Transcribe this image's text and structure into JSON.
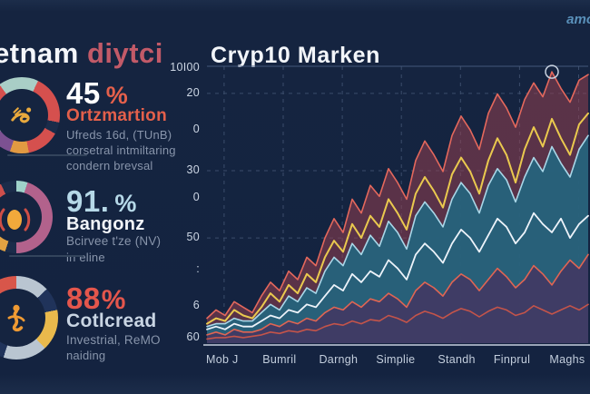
{
  "header": {
    "title_white": "etnam",
    "title_accent": "diytci",
    "accent_color": "#c25a68",
    "watermark": "amo",
    "background_color": "#142340"
  },
  "sidebar": {
    "stats": [
      {
        "value": "45",
        "sign": "%",
        "value_color": "#ffffff",
        "sign_color": "#e4604b",
        "label": "Ortzmartion",
        "label_color": "#e4604b",
        "desc_lines": [
          "Ufreds 16d, (TUnB)",
          "corsetral intmiltaring",
          "condern brevsal"
        ],
        "icon": "dragon-illustration",
        "donut_segments": [
          {
            "from": 0.0,
            "to": 0.07,
            "color": "#a9cec6"
          },
          {
            "from": 0.07,
            "to": 0.28,
            "color": "#d5504e"
          },
          {
            "from": 0.28,
            "to": 0.33,
            "color": "#1b2c4a"
          },
          {
            "from": 0.33,
            "to": 0.47,
            "color": "#d5504e"
          },
          {
            "from": 0.47,
            "to": 0.55,
            "color": "#e29a42"
          },
          {
            "from": 0.55,
            "to": 0.65,
            "color": "#7c5192"
          },
          {
            "from": 0.65,
            "to": 0.72,
            "color": "#a9cec6"
          },
          {
            "from": 0.72,
            "to": 0.9,
            "color": "#d5504e"
          },
          {
            "from": 0.9,
            "to": 1.0,
            "color": "#a9cec6"
          }
        ]
      },
      {
        "value": "91.",
        "sign": "%",
        "value_color": "#b6d9e8",
        "sign_color": "#b6d9e8",
        "label": "Bangonz",
        "label_color": "#f2f5f9",
        "desc_lines": [
          "Bcirvee t'ze  (NV)",
          "in eline"
        ],
        "icon": "lantern-illustration",
        "donut_segments": [
          {
            "from": 0.0,
            "to": 0.05,
            "color": "#9fd2ca"
          },
          {
            "from": 0.05,
            "to": 0.5,
            "color": "#b2628c"
          },
          {
            "from": 0.5,
            "to": 0.55,
            "color": "#1b2c4a"
          },
          {
            "from": 0.55,
            "to": 0.66,
            "color": "#e2a242"
          },
          {
            "from": 0.66,
            "to": 0.72,
            "color": "#1b2c4a"
          },
          {
            "from": 0.72,
            "to": 0.78,
            "color": "#b2628c"
          },
          {
            "from": 0.78,
            "to": 0.93,
            "color": "#cd4f4c"
          },
          {
            "from": 0.93,
            "to": 1.0,
            "color": "#1b2c4a"
          }
        ]
      },
      {
        "value": "88",
        "sign": "%",
        "value_color": "#e4564c",
        "sign_color": "#e4564c",
        "label": "Cotlcread",
        "label_color": "#c9d5e3",
        "desc_lines": [
          "Investrial, ReMO",
          "naiding"
        ],
        "icon": "dancer-illustration",
        "donut_segments": [
          {
            "from": 0.0,
            "to": 0.13,
            "color": "#b9c5d1"
          },
          {
            "from": 0.13,
            "to": 0.22,
            "color": "#20335a"
          },
          {
            "from": 0.22,
            "to": 0.38,
            "color": "#e9b94c"
          },
          {
            "from": 0.38,
            "to": 0.55,
            "color": "#b9c5d1"
          },
          {
            "from": 0.55,
            "to": 0.6,
            "color": "#20335a"
          },
          {
            "from": 0.6,
            "to": 1.0,
            "color": "#d8564a"
          }
        ]
      }
    ]
  },
  "chart_data": {
    "type": "area",
    "title": "Cryp10 Marken",
    "xlabel": "",
    "ylabel": "",
    "ylim": [
      0,
      100
    ],
    "grid": "dashed",
    "legend": "none",
    "x_labels": [
      "Mob J",
      "Bumril",
      "Darngh",
      "Simplie",
      "Standh",
      "Finprul",
      "Maghs"
    ],
    "y_ticks": [
      {
        "label": "10I00",
        "v": 99.3
      },
      {
        "label": "20",
        "v": 90.2
      },
      {
        "label": "0",
        "v": 77.0
      },
      {
        "label": "30",
        "v": 62.3
      },
      {
        "label": "0",
        "v": 52.5
      },
      {
        "label": "50",
        "v": 38.0
      },
      {
        "label": ":",
        "v": 26.6
      },
      {
        "label": "6",
        "v": 13.4
      },
      {
        "label": "60",
        "v": 2.0
      }
    ],
    "h_grid_values": [
      90.2,
      62.3,
      38.0,
      3.3
    ],
    "series": [
      {
        "name": "red-market-area",
        "render": "area",
        "stroke": "#e4685c",
        "width": 1.6,
        "fill": "rgba(148,64,78,0.55)",
        "values": [
          9,
          12,
          10,
          15,
          13,
          11,
          17,
          22,
          19,
          26,
          23,
          31,
          28,
          38,
          45,
          40,
          52,
          47,
          57,
          53,
          63,
          58,
          52,
          66,
          73,
          68,
          62,
          75,
          82,
          77,
          70,
          83,
          90,
          85,
          78,
          88,
          94,
          89,
          98,
          92,
          87,
          95,
          97
        ]
      },
      {
        "name": "teal-market-area",
        "render": "area",
        "stroke": "#a9d7e8",
        "width": 1.6,
        "fill": "rgba(36,100,126,0.92)",
        "values": [
          6,
          7,
          7,
          9,
          8,
          8,
          11,
          14,
          12,
          17,
          15,
          20,
          18,
          26,
          31,
          28,
          36,
          32,
          39,
          35,
          44,
          40,
          34,
          46,
          51,
          47,
          42,
          52,
          58,
          54,
          47,
          57,
          63,
          59,
          51,
          60,
          67,
          62,
          71,
          65,
          60,
          70,
          75
        ]
      },
      {
        "name": "lower-band-upper-line",
        "render": "area",
        "stroke": "#e06553",
        "width": 1.6,
        "fill": "rgba(72,46,92,0.70)",
        "values": [
          3,
          4,
          3,
          5,
          4,
          4,
          5,
          7,
          6,
          8,
          7,
          9,
          8,
          11,
          13,
          12,
          15,
          13,
          16,
          15,
          18,
          16,
          13,
          19,
          22,
          20,
          17,
          22,
          25,
          23,
          19,
          23,
          27,
          24,
          20,
          23,
          28,
          25,
          21,
          26,
          30,
          27,
          32
        ]
      },
      {
        "name": "lower-band-lower-line",
        "render": "line",
        "stroke": "#c4544a",
        "width": 1.6,
        "values": [
          1.5,
          2,
          2,
          2.5,
          2,
          2.5,
          3,
          4,
          3.5,
          4.5,
          4,
          5,
          4.5,
          6,
          7,
          6.5,
          8,
          7,
          8.5,
          8,
          10,
          9,
          7.5,
          10,
          11.5,
          10.5,
          9,
          11,
          12.5,
          11.5,
          9.5,
          11.5,
          13,
          12,
          10,
          11,
          13.5,
          12,
          10.5,
          12,
          13.5,
          12,
          14
        ]
      },
      {
        "name": "yellow-line",
        "render": "line",
        "stroke": "#eac94e",
        "width": 2,
        "values": [
          7,
          9,
          8,
          12,
          10,
          9,
          13,
          18,
          15,
          21,
          18,
          25,
          22,
          31,
          37,
          33,
          43,
          38,
          46,
          42,
          52,
          47,
          41,
          54,
          60,
          55,
          49,
          61,
          67,
          62,
          54,
          66,
          74,
          68,
          58,
          70,
          78,
          71,
          81,
          74,
          68,
          79,
          83
        ]
      },
      {
        "name": "white-line",
        "render": "line",
        "stroke": "#edf3fa",
        "width": 1.8,
        "values": [
          5,
          6,
          5,
          7,
          6,
          6,
          8,
          10,
          9,
          12,
          11,
          14,
          13,
          17,
          21,
          19,
          25,
          22,
          26,
          24,
          30,
          27,
          23,
          32,
          36,
          33,
          29,
          36,
          41,
          38,
          33,
          39,
          45,
          42,
          36,
          40,
          47,
          43,
          40,
          45,
          38,
          43,
          46
        ]
      }
    ],
    "marker": {
      "series_index": 0,
      "point_index": 38,
      "r": 7,
      "color": "#c9d3e1"
    }
  }
}
